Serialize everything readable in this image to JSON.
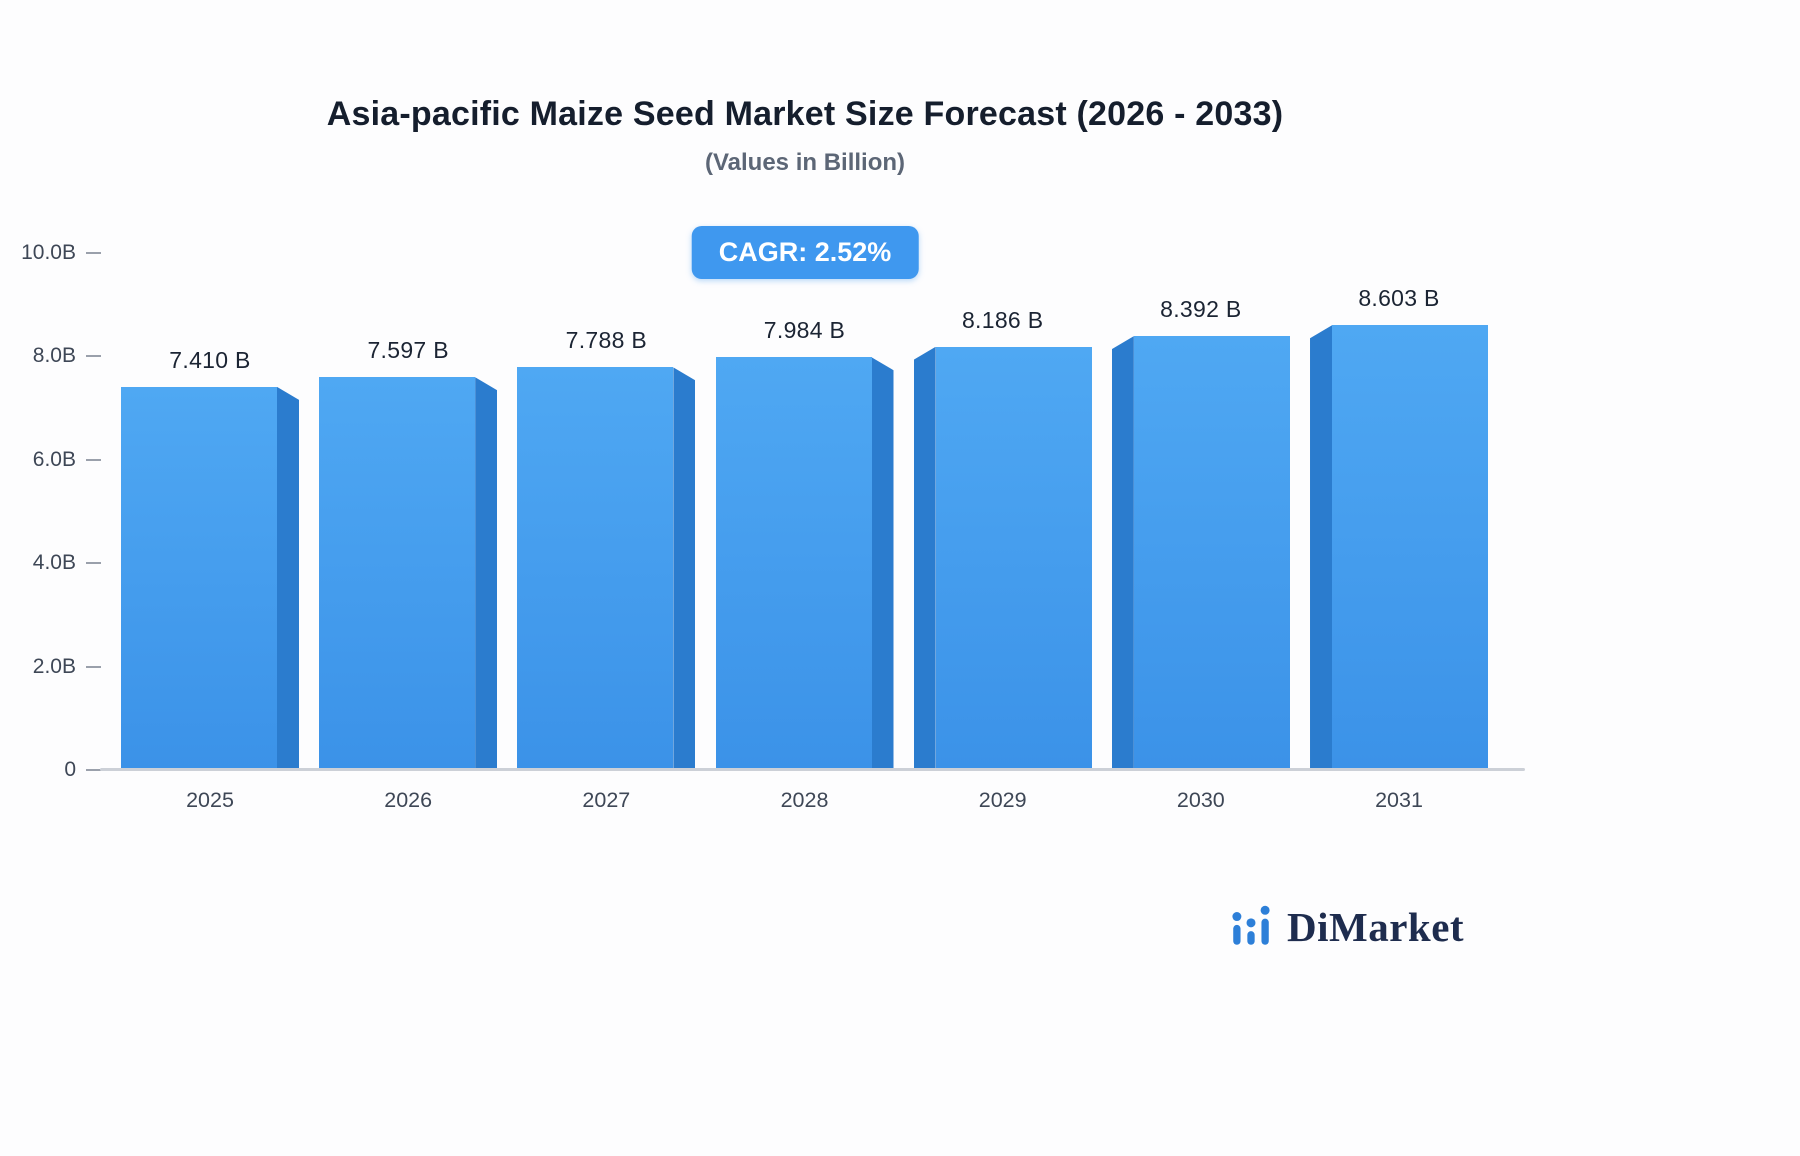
{
  "chart_data": {
    "type": "bar",
    "title": "Asia-pacific Maize Seed Market Size Forecast (2026 - 2033)",
    "subtitle": "(Values in Billion)",
    "cagr_badge": "CAGR: 2.52%",
    "categories": [
      "2025",
      "2026",
      "2027",
      "2028",
      "2029",
      "2030",
      "2031"
    ],
    "values": [
      7.41,
      7.597,
      7.788,
      7.984,
      8.186,
      8.392,
      8.603
    ],
    "value_labels": [
      "7.410 B",
      "7.597 B",
      "7.788 B",
      "7.984 B",
      "8.186 B",
      "8.392 B",
      "8.603 B"
    ],
    "ylim": [
      0,
      10
    ],
    "y_ticks": {
      "values": [
        0,
        2,
        4,
        6,
        8,
        10
      ],
      "labels": [
        "0",
        "2.0B",
        "4.0B",
        "6.0B",
        "8.0B",
        "10.0B"
      ]
    },
    "grid": false,
    "legend": "none"
  },
  "colors": {
    "bar_face_top": "#4FA8F3",
    "bar_face_bottom": "#3B92E8",
    "bar_side": "#2B7CCE",
    "badge_bg": "#3F98EF",
    "title_color": "#151E2D",
    "axis_text": "#3E4756",
    "brand_navy": "#1E2C4E",
    "brand_blue": "#2D7FD8"
  },
  "branding": {
    "name": "DiMarket"
  }
}
